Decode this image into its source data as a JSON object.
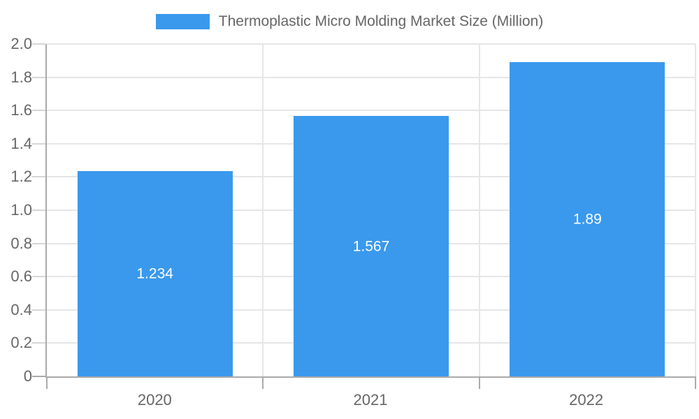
{
  "legend": {
    "label": "Thermoplastic Micro Molding Market Size (Million)"
  },
  "chart_data": {
    "type": "bar",
    "title": "Thermoplastic Micro Molding Market Size (Million)",
    "categories": [
      "2020",
      "2021",
      "2022"
    ],
    "series": [
      {
        "name": "Thermoplastic Micro Molding Market Size (Million)",
        "values": [
          1.234,
          1.567,
          1.89
        ]
      }
    ],
    "values": [
      1.234,
      1.567,
      1.89
    ],
    "data_labels": [
      "1.234",
      "1.567",
      "1.89"
    ],
    "data_label_position": "inside-center",
    "xlabel": "",
    "ylabel": "",
    "ylim": [
      0,
      2
    ],
    "ytick_step": 0.2,
    "ytick_labels": [
      "0",
      "0.2",
      "0.4",
      "0.6",
      "0.8",
      "1.0",
      "1.2",
      "1.4",
      "1.6",
      "1.8",
      "2.0"
    ],
    "grid": true,
    "legend_position": "top-center",
    "bar_width_fraction": 0.718,
    "colors": {
      "bar": "#3a99ec",
      "grid_line": "#e6e6e6",
      "axis_line": "#aaaaaa",
      "tick": "#d6d6d6",
      "axis_text": "#666666",
      "data_label_text": "#ffffff",
      "background": "#ffffff"
    }
  }
}
